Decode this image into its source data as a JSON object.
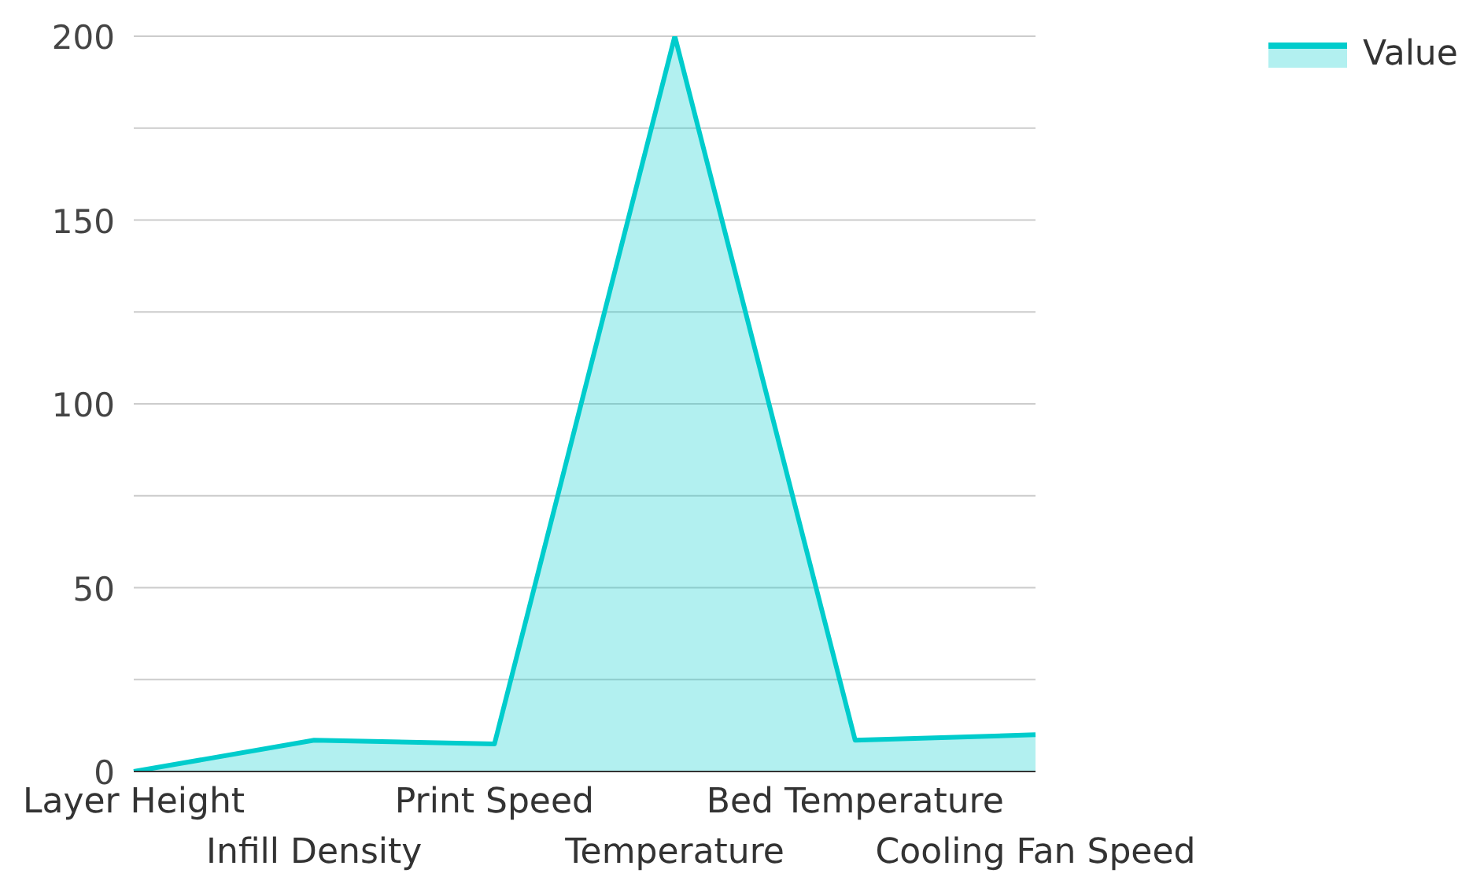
{
  "chart_data": {
    "type": "area",
    "categories": [
      "Layer Height",
      "Infill Density",
      "Print Speed",
      "Temperature",
      "Bed Temperature",
      "Cooling Fan Speed"
    ],
    "series": [
      {
        "name": "Value",
        "color": "#00cccc",
        "values": [
          0,
          8.5,
          7.5,
          200,
          8.5,
          10
        ]
      }
    ],
    "ylim": [
      0,
      200
    ],
    "yticks": [
      0,
      {
        "value": 25,
        "label": null
      },
      50,
      {
        "value": 75,
        "label": null
      },
      100,
      {
        "value": 125,
        "label": null
      },
      150,
      {
        "value": 175,
        "label": null
      },
      200
    ],
    "grid": "y",
    "legend": "top right"
  }
}
